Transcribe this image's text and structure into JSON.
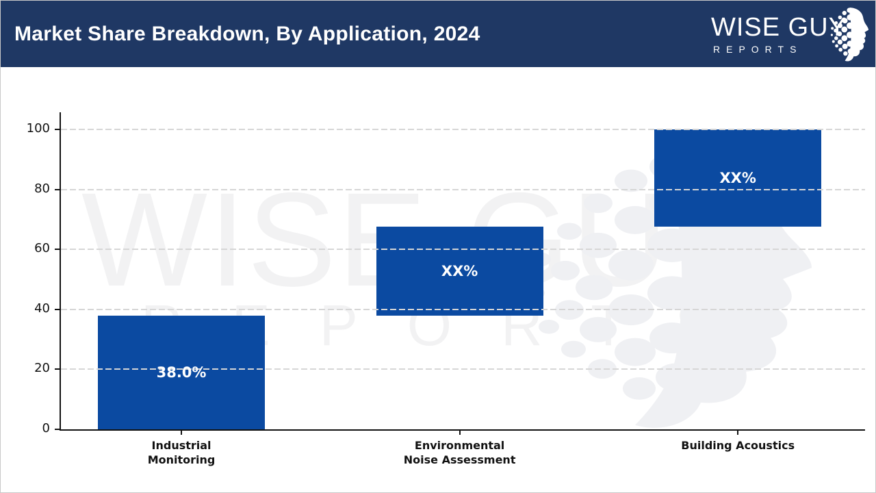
{
  "header": {
    "title": "Market Share Breakdown, By Application, 2024",
    "logo": {
      "wordmark": "WISE GUY",
      "reports": "REPORTS"
    }
  },
  "watermark": {
    "wordmark": "WISE GUY",
    "reports": "REPORTS"
  },
  "colors": {
    "header_bg": "#1f3864",
    "bar": "#0b4aa1",
    "grid": "#d6d6d6",
    "axis": "#111111",
    "bar_label": "#ffffff",
    "title_text": "#ffffff",
    "watermark": "#f2f2f3",
    "frame_border": "#c9c9c9"
  },
  "chart_data": {
    "type": "bar",
    "subtype": "floating-segment-waterfall",
    "title": "Market Share Breakdown, By Application, 2024",
    "categories": [
      "Industrial Monitoring",
      "Environmental Noise Assessment",
      "Building Acoustics"
    ],
    "category_lines": [
      [
        "Industrial",
        "Monitoring"
      ],
      [
        "Environmental",
        "Noise Assessment"
      ],
      [
        "Building Acoustics"
      ]
    ],
    "segments": [
      {
        "category": "Industrial Monitoring",
        "from": 0,
        "to": 38,
        "label": "38.0%"
      },
      {
        "category": "Environmental Noise Assessment",
        "from": 38,
        "to": 67.6,
        "label": "XX%"
      },
      {
        "category": "Building Acoustics",
        "from": 67.6,
        "to": 100,
        "label": "XX%"
      }
    ],
    "yticks": [
      0,
      20,
      40,
      60,
      80,
      100
    ],
    "ylim": [
      0,
      105.7
    ],
    "xlim": [
      -0.433,
      2.457
    ],
    "bar_width_units": 0.6,
    "grid": "dashed-horizontal",
    "grid_above_bars": true,
    "legend": "none",
    "xlabel": "",
    "ylabel": ""
  }
}
